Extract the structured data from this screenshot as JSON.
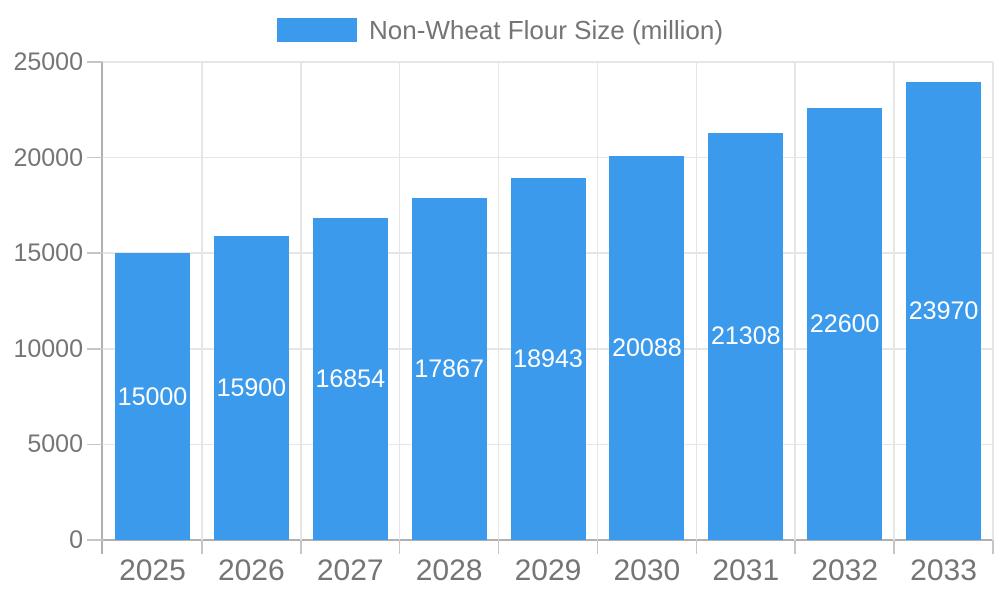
{
  "chart_data": {
    "type": "bar",
    "title": "",
    "legend_entries": [
      "Non-Wheat Flour Size (million)"
    ],
    "legend_position": "top",
    "categories": [
      "2025",
      "2026",
      "2027",
      "2028",
      "2029",
      "2030",
      "2031",
      "2032",
      "2033"
    ],
    "values": [
      15000,
      15900,
      16854,
      17867,
      18943,
      20088,
      21308,
      22600,
      23970
    ],
    "xlabel": "",
    "ylabel": "",
    "ylim": [
      0,
      25000
    ],
    "yticks": [
      0,
      5000,
      10000,
      15000,
      20000,
      25000
    ],
    "grid": "on",
    "value_labels": "inside-center"
  },
  "colors": {
    "bar": "#3b9aec",
    "grid": "#e6e6e6",
    "axis": "#b0b0b0",
    "tick": "#c6c6c6",
    "label_text": "#757575",
    "value_text": "#ffffff",
    "background": "#ffffff"
  }
}
